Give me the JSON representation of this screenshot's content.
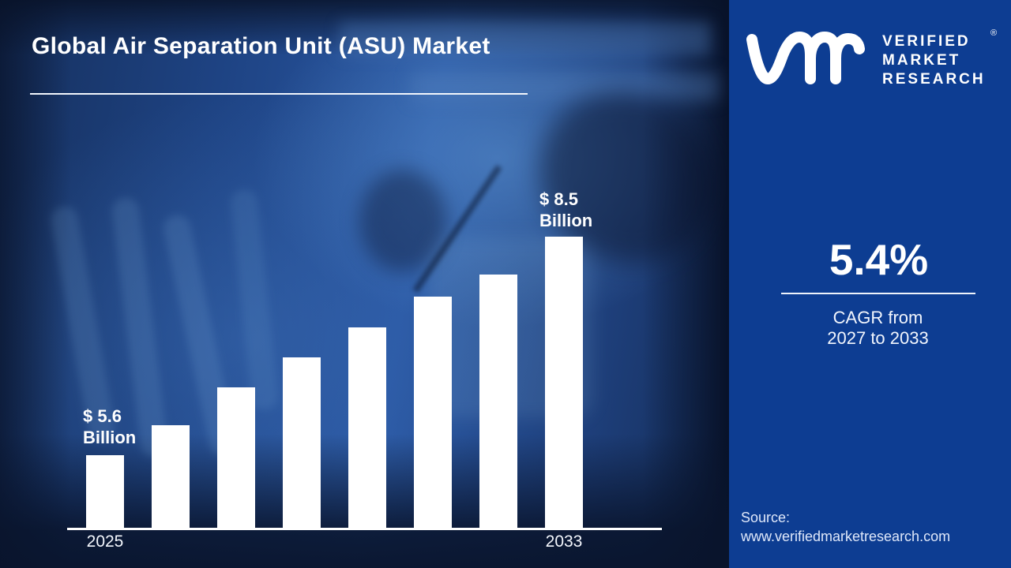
{
  "title": "Global Air Separation Unit (ASU) Market",
  "brand": {
    "logo_icon": "vmr-monogram",
    "name_lines": [
      "VERIFIED",
      "MARKET",
      "RESEARCH"
    ],
    "registered_mark": "®"
  },
  "stats_panel": {
    "cagr_value": "5.4%",
    "cagr_line1": "CAGR from",
    "cagr_line2": "2027 to 2033",
    "source_label": "Source:",
    "source_url": "www.verifiedmarketresearch.com"
  },
  "colors": {
    "panel_blue": "#0d3d92",
    "background_navy": "#1d3d77",
    "bar_white": "#ffffff",
    "text_white": "#ffffff"
  },
  "chart_data": {
    "type": "bar",
    "title": "Global Air Separation Unit (ASU) Market",
    "unit": "USD Billion",
    "categories": [
      "2025",
      "",
      "",
      "",
      "",
      "",
      "",
      "2033"
    ],
    "values": [
      5.6,
      6.0,
      6.5,
      6.9,
      7.3,
      7.7,
      8.0,
      8.5
    ],
    "endpoint_labels": {
      "start": {
        "line1": "$ 5.6",
        "line2": "Billion"
      },
      "end": {
        "line1": "$ 8.5",
        "line2": "Billion"
      }
    },
    "x_axis_labels_visible": [
      "2025",
      "2033"
    ],
    "value_axis_shown": false,
    "gridlines": false,
    "legend": false,
    "bar_color": "#ffffff",
    "axis_line_color": "#ffffff",
    "note": "Only the first and last bars carry value labels; intermediate values are estimated from bar heights."
  }
}
